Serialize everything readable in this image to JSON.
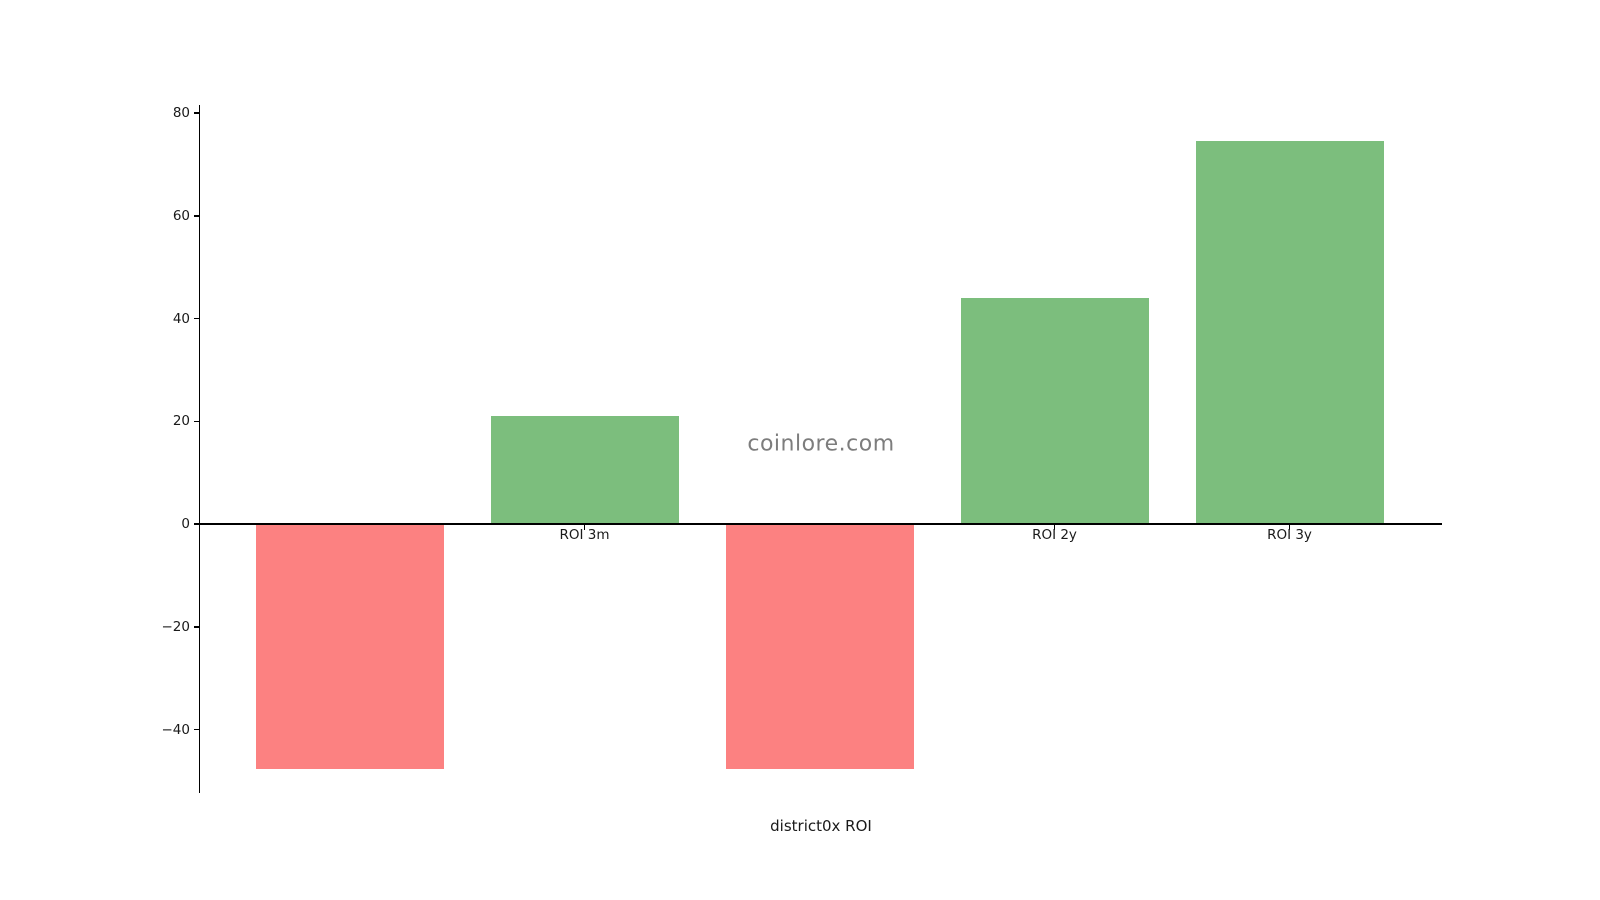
{
  "chart_data": {
    "type": "bar",
    "title": "",
    "watermark": "coinlore.com",
    "xlabel": "district0x ROI",
    "ylabel": "",
    "categories": [
      "",
      "ROI 3m",
      "",
      "ROI 2y",
      "ROI 3y"
    ],
    "values": [
      -47.6,
      21,
      -47.6,
      44,
      74.6
    ],
    "series": [
      {
        "name": "district0x ROI",
        "values": [
          -47.6,
          21,
          -47.6,
          44,
          74.6
        ]
      }
    ],
    "bar_colors": [
      "#fc8181",
      "#7cbe7d",
      "#fc8181",
      "#7cbe7d",
      "#7cbe7d"
    ],
    "positive_color": "#7cbe7d",
    "negative_color": "#fc8181",
    "yticks": [
      80,
      60,
      40,
      20,
      0,
      -20,
      -40
    ],
    "ytick_labels": [
      "80",
      "60",
      "40",
      "20",
      "0",
      "−20",
      "−40"
    ],
    "ylim": [
      -52.4,
      81.6
    ],
    "grid": false,
    "legend_position": "none",
    "axis_color": "#000000",
    "watermark_color": "#7d7d7d",
    "text_color": "#1a1a1a"
  }
}
